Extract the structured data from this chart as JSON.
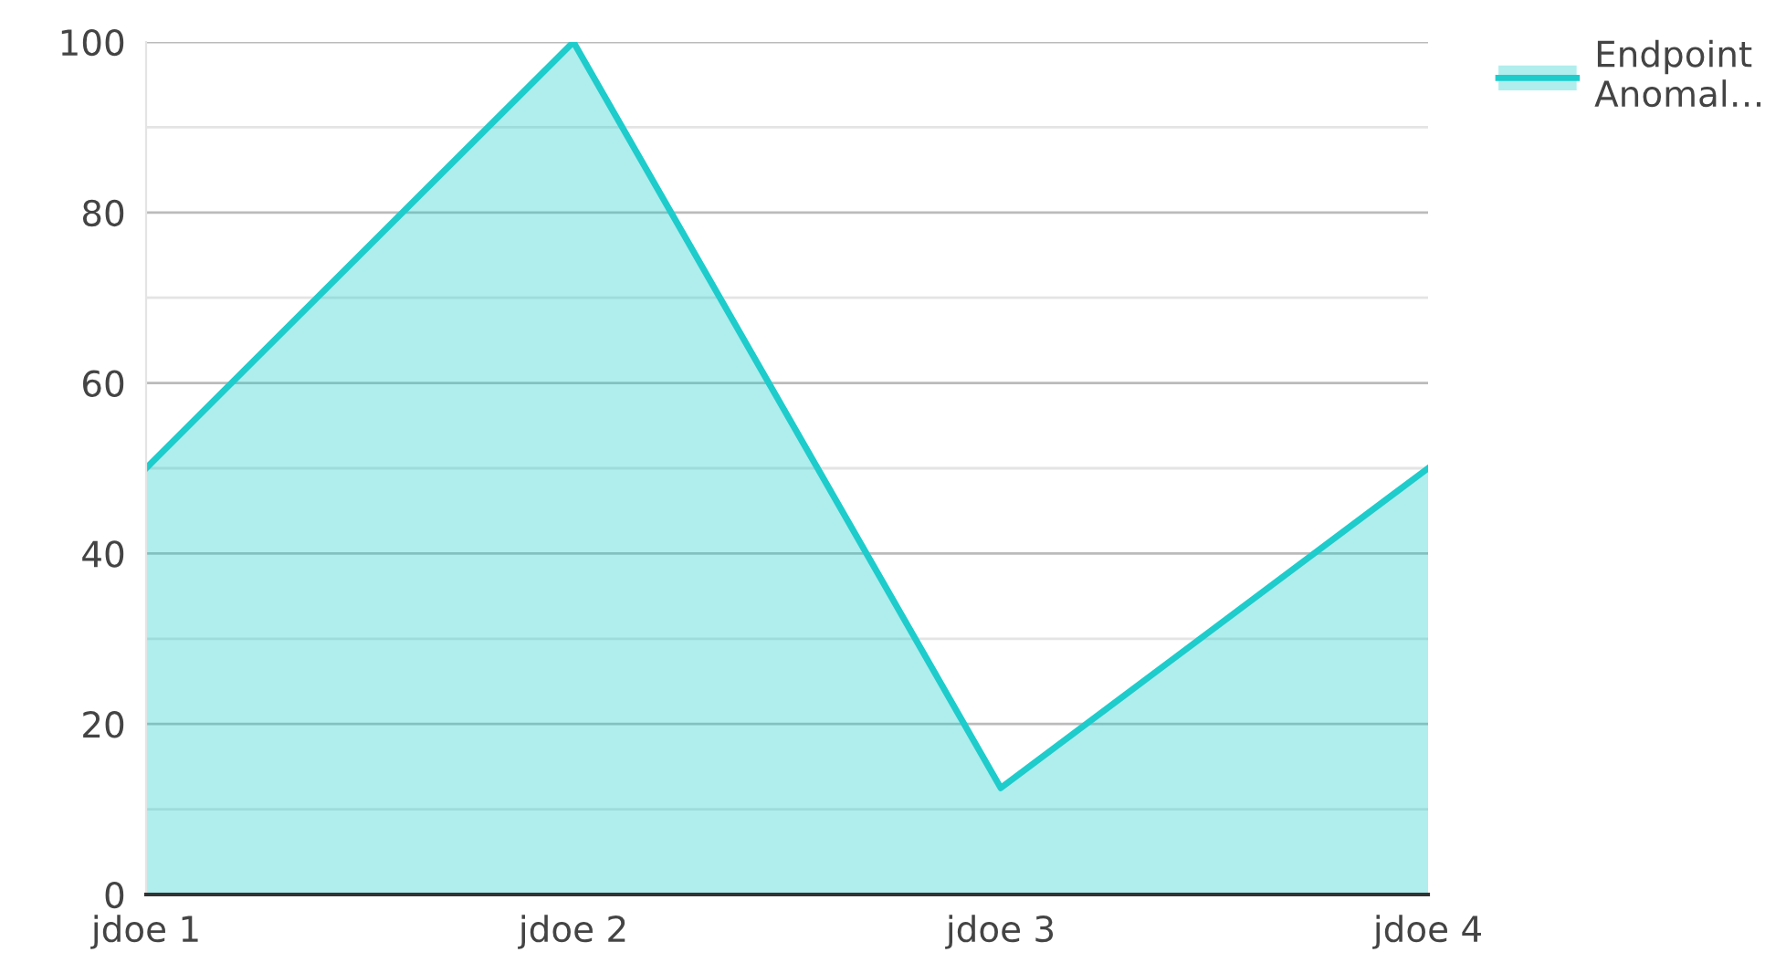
{
  "chart_data": {
    "type": "area",
    "categories": [
      "jdoe 1",
      "jdoe 2",
      "jdoe 3",
      "jdoe 4"
    ],
    "series": [
      {
        "name": "Endpoint\nAnomal…",
        "color": "#1ecccc",
        "values": [
          50,
          100,
          12.5,
          50
        ]
      }
    ],
    "ylim": [
      0,
      100
    ],
    "yticks": [
      0,
      {
        "value": 10,
        "label": null
      },
      20,
      {
        "value": 30,
        "label": null
      },
      40,
      {
        "value": 50,
        "label": null
      },
      60,
      {
        "value": 70,
        "label": null
      },
      80,
      {
        "value": 90,
        "label": null
      },
      100
    ],
    "grid": "y",
    "legend": "top right"
  }
}
